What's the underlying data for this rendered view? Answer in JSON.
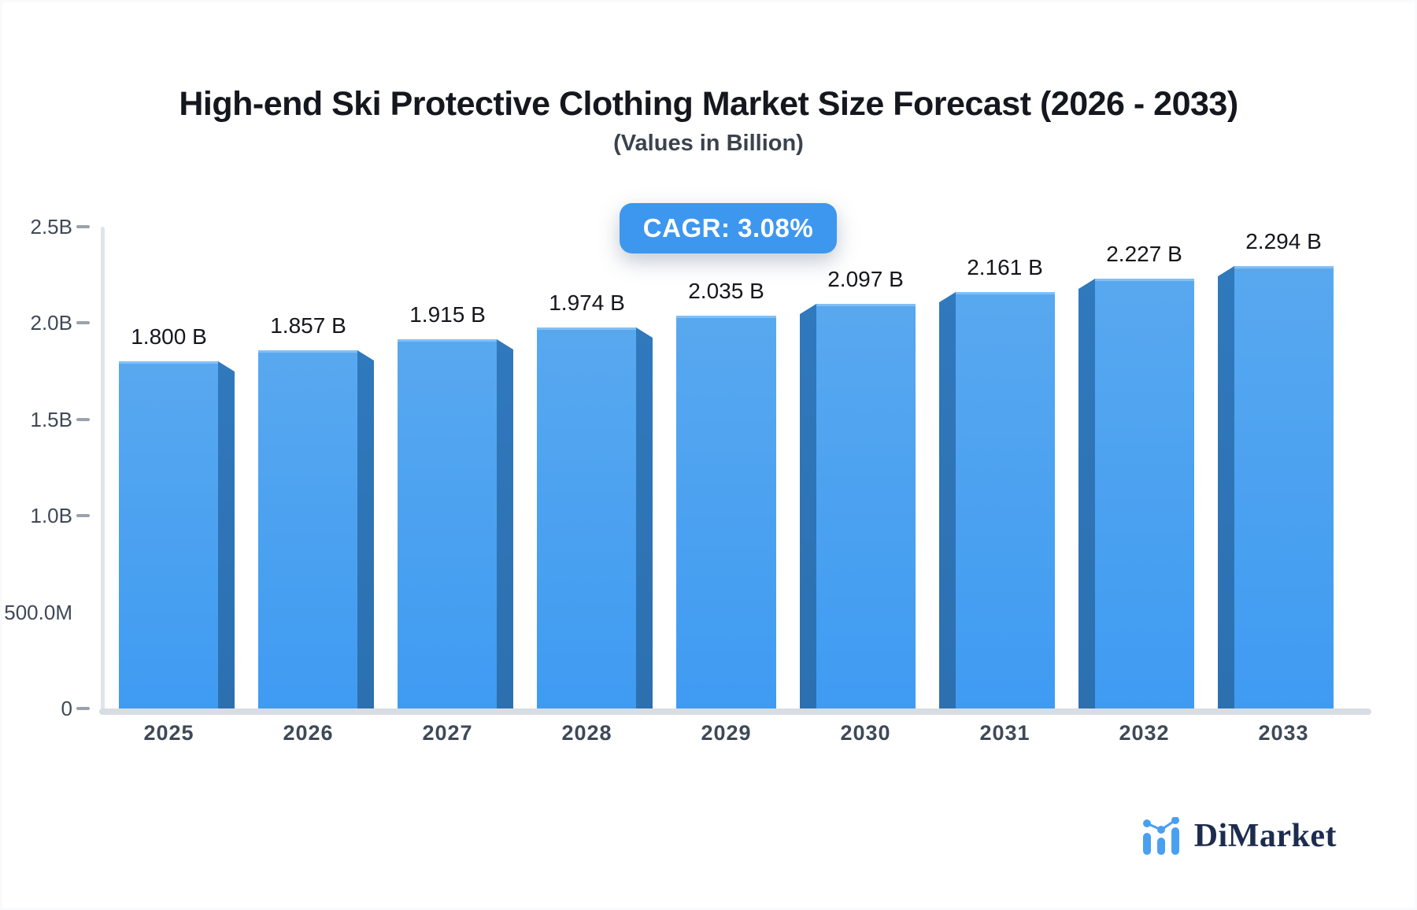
{
  "title": "High-end Ski Protective Clothing Market Size Forecast (2026 - 2033)",
  "subtitle": "(Values in Billion)",
  "cagr": {
    "label": "CAGR: 3.08%"
  },
  "logo": {
    "text": "DiMarket",
    "icon": "mini-bar-chart-icon"
  },
  "colors": {
    "badge_bg": "#3e97ee",
    "bar_face_top": "#58a8ef",
    "bar_face_bottom": "#3f9bf2",
    "bar_side_top": "#3079bd",
    "bar_side_bottom": "#2c70b0",
    "logo_blue": "#4aa0f0",
    "logo_navy": "#1d2c4e",
    "axis_gray": "#e0e4ea",
    "tick_gray": "#99a2ad"
  },
  "chart_data": {
    "type": "bar",
    "title": "High-end Ski Protective Clothing Market Size Forecast (2026 - 2033)",
    "subtitle": "(Values in Billion)",
    "xlabel": "",
    "ylabel": "",
    "unit": "Billion USD",
    "grid": false,
    "legend": false,
    "ylim": [
      0,
      2.5
    ],
    "categories": [
      "2025",
      "2026",
      "2027",
      "2028",
      "2029",
      "2030",
      "2031",
      "2032",
      "2033"
    ],
    "values": [
      1.8,
      1.857,
      1.915,
      1.974,
      2.035,
      2.097,
      2.161,
      2.227,
      2.294
    ],
    "value_labels": [
      "1.800 B",
      "1.857 B",
      "1.915 B",
      "1.974 B",
      "2.035 B",
      "2.097 B",
      "2.161 B",
      "2.227 B",
      "2.294 B"
    ],
    "yticks": [
      {
        "label": "2.5B",
        "value": 2.5,
        "dash": true
      },
      {
        "label": "2.0B",
        "value": 2.0,
        "dash": true
      },
      {
        "label": "1.5B",
        "value": 1.5,
        "dash": true
      },
      {
        "label": "1.0B",
        "value": 1.0,
        "dash": true
      },
      {
        "label": "500.0M",
        "value": 0.5,
        "dash": false
      },
      {
        "label": "0",
        "value": 0.0,
        "dash": true
      }
    ]
  }
}
